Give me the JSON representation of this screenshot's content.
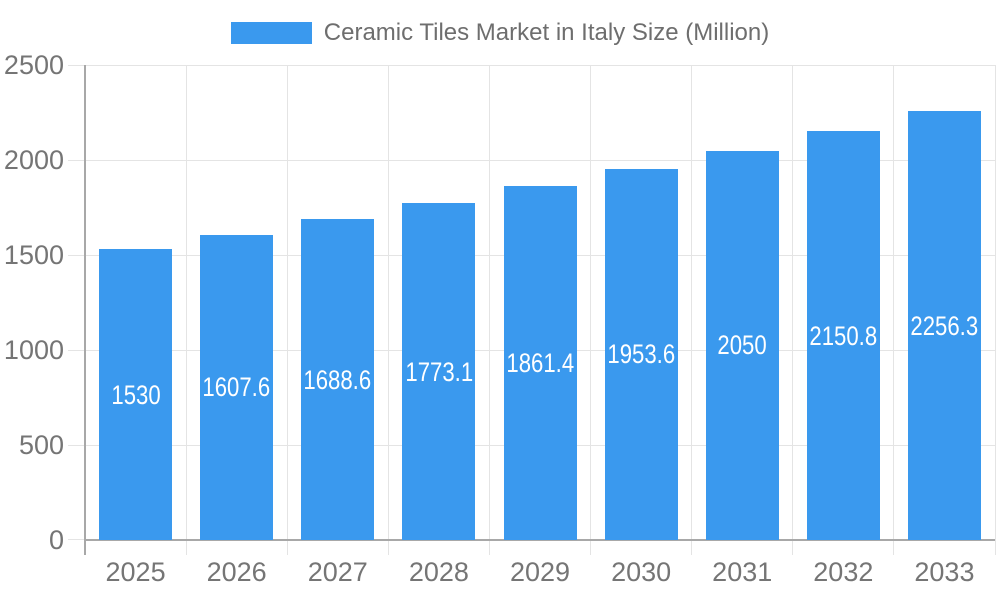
{
  "legend": {
    "label": "Ceramic Tiles Market in Italy Size (Million)"
  },
  "chart_data": {
    "type": "bar",
    "title": "Ceramic Tiles Market in Italy Size (Million)",
    "categories": [
      "2025",
      "2026",
      "2027",
      "2028",
      "2029",
      "2030",
      "2031",
      "2032",
      "2033"
    ],
    "values": [
      1530,
      1607.6,
      1688.6,
      1773.1,
      1861.4,
      1953.6,
      2050,
      2150.8,
      2256.3
    ],
    "value_labels": [
      "1530",
      "1607.6",
      "1688.6",
      "1773.1",
      "1861.4",
      "1953.6",
      "2050",
      "2150.8",
      "2256.3"
    ],
    "xlabel": "",
    "ylabel": "",
    "ylim": [
      0,
      2500
    ],
    "ytick_interval": 500,
    "ytick_labels": [
      "0",
      "500",
      "1000",
      "1500",
      "2000",
      "2500"
    ],
    "grid": true,
    "legend_position": "top-center",
    "colors": {
      "bar": "#3A99EE",
      "value_label": "#FFFFFF",
      "axis_line": "#A8A8A8",
      "gridline": "#E4E4E4",
      "axis_label": "#757575",
      "title": "#6E6E6E",
      "background": "#FFFFFF"
    }
  }
}
